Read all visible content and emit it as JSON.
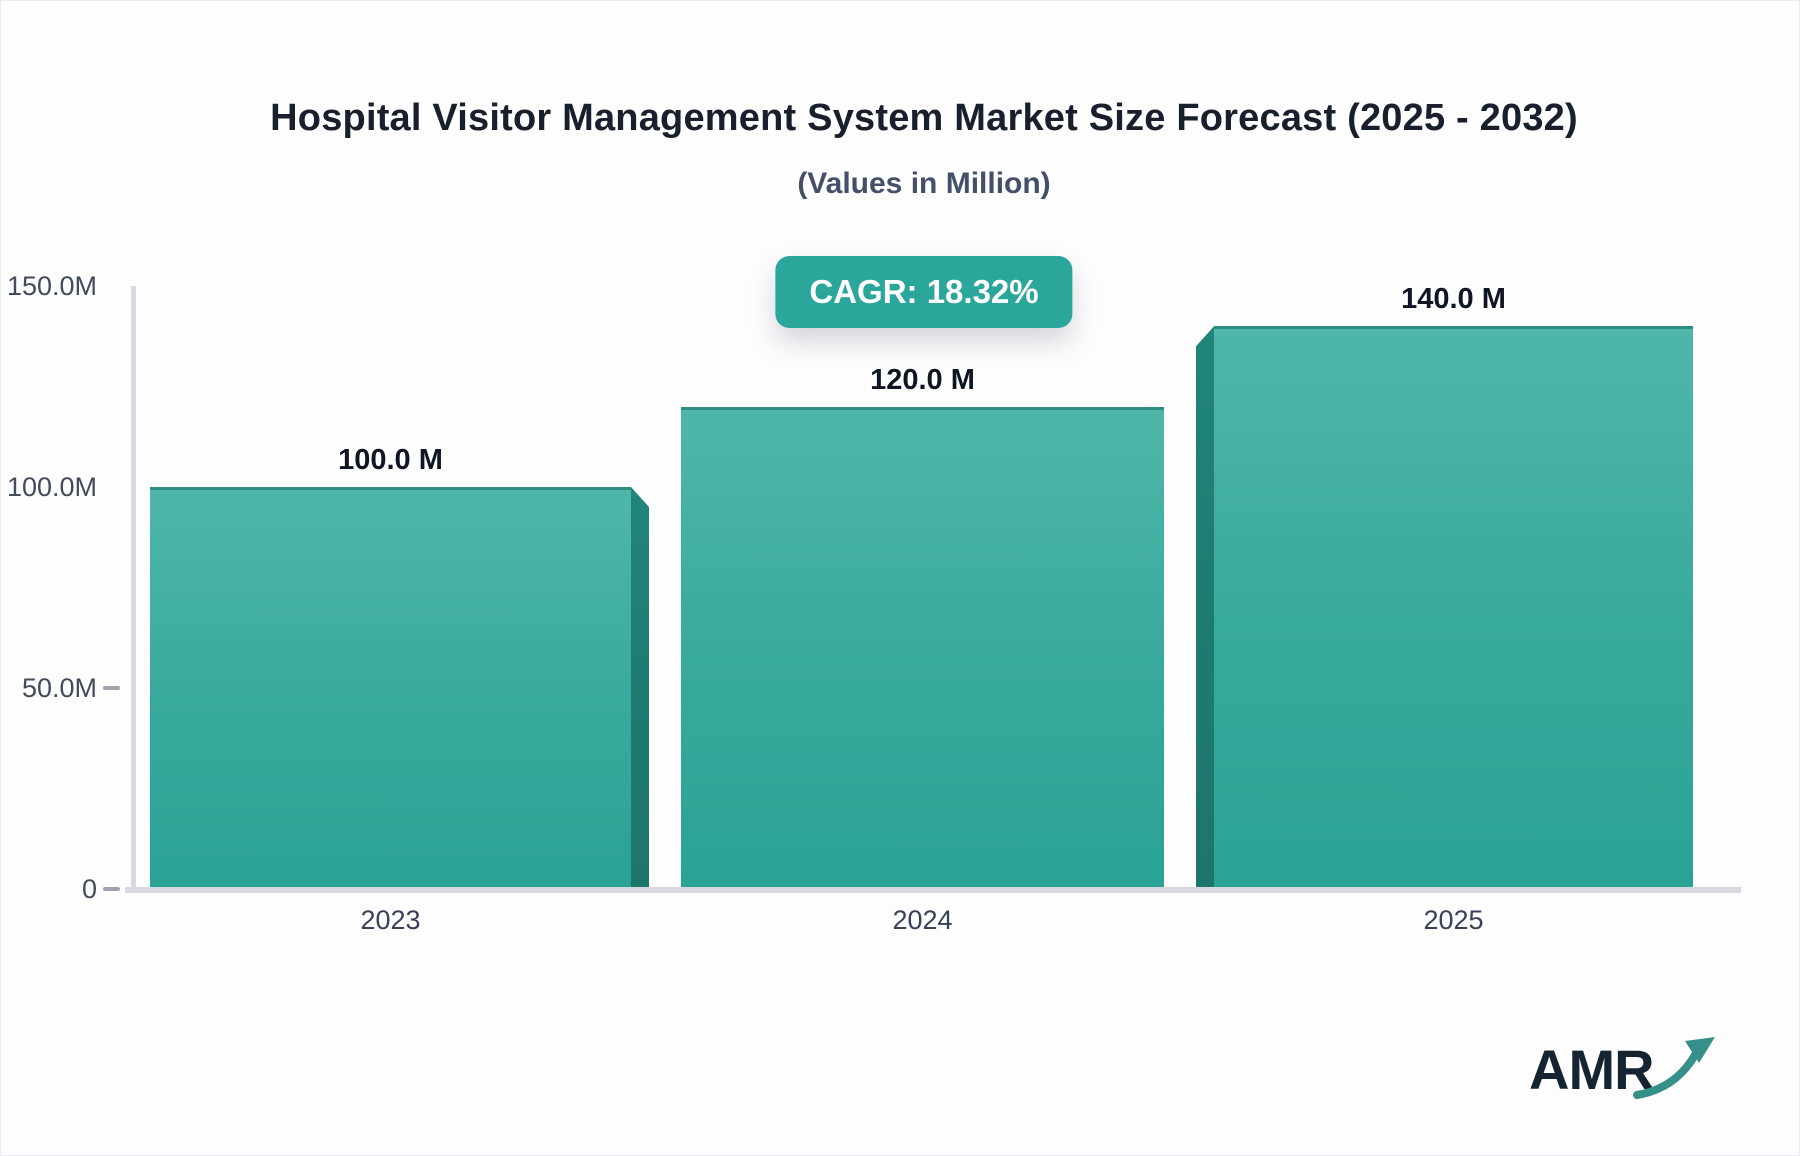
{
  "page": {
    "background": "#FDFDFE",
    "border_color": "#E9EBF0"
  },
  "header": {
    "title": "Hospital Visitor Management System Market Size Forecast (2025 - 2032)",
    "subtitle": "(Values in Million)"
  },
  "cagr_badge": {
    "label": "CAGR: 18.32%",
    "background": "#2BA69A",
    "text_color": "#FFFFFF"
  },
  "chart_data": {
    "type": "bar",
    "title": "Hospital Visitor Management System Market Size Forecast (2025 - 2032)",
    "subtitle": "(Values in Million)",
    "unit": "Million",
    "cagr_percent": "18.32%",
    "categories": [
      "2023",
      "2024",
      "2025"
    ],
    "values": [
      100.0,
      120.0,
      140.0
    ],
    "bar_value_labels": [
      "100.0 M",
      "120.0 M",
      "140.0 M"
    ],
    "xlabel": "",
    "ylabel": "",
    "ylim": [
      0,
      150
    ],
    "y_axis_ticks": [
      {
        "label": "150.0M",
        "value": 150
      },
      {
        "label": "100.0M",
        "value": 100
      },
      {
        "label": "50.0M",
        "value": 50
      },
      {
        "label": "0",
        "value": 0
      }
    ],
    "grid": "off",
    "legend": "none",
    "colors": {
      "bar_gradient_top": "#4FB7A9",
      "bar_gradient_bottom": "#2AA296",
      "bar_top_border": "#2E8E82",
      "bar_side_3d": "#1E7A6F",
      "axis_line": "#D7D9DE",
      "tick_dash": "#9CA3AF"
    }
  },
  "logo": {
    "text": "AMR",
    "arrow_icon": "trend-up-arrow-icon",
    "text_color": "#152430",
    "arrow_color": "#35908A"
  }
}
